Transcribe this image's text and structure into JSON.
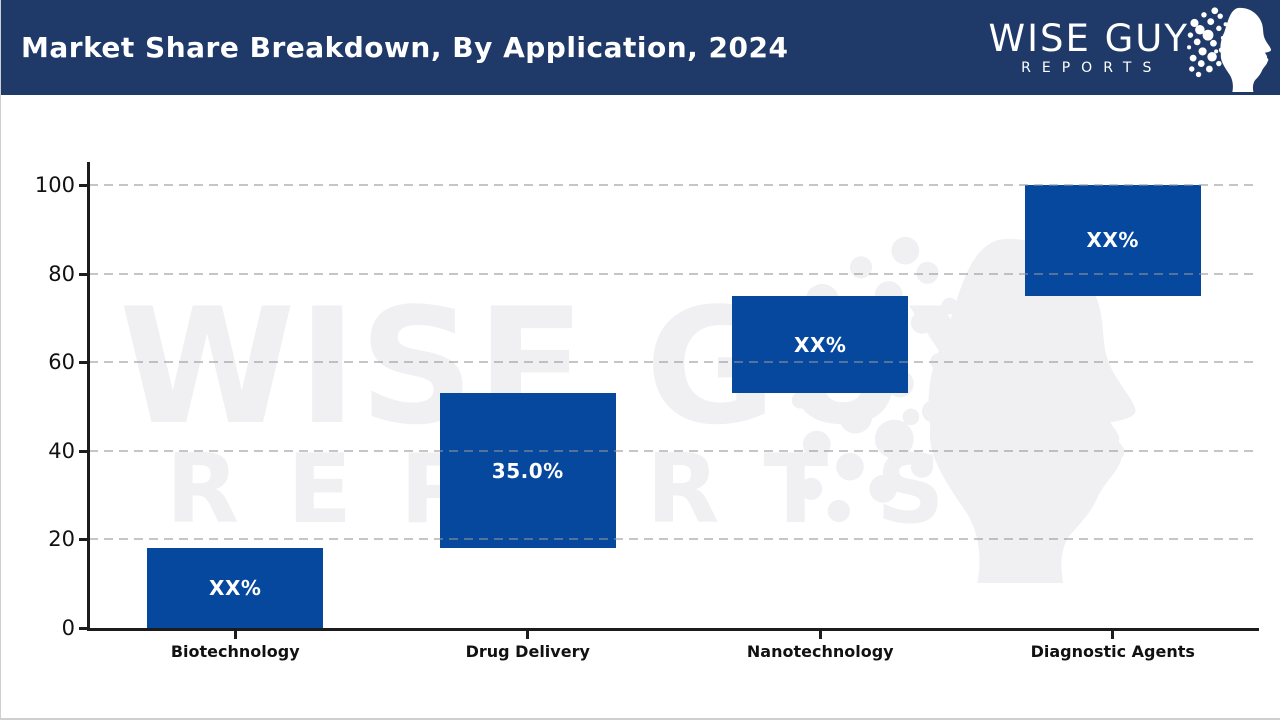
{
  "header": {
    "title": "Market Share Breakdown, By Application, 2024",
    "logo": {
      "line1": "WISE GUY",
      "line2": "REPORTS"
    }
  },
  "watermark": {
    "line1": "WISE GUY",
    "line2": "REPORTS"
  },
  "chart_data": {
    "type": "bar",
    "subtype": "waterfall",
    "title": "Market Share Breakdown, By Application, 2024",
    "categories": [
      "Biotechnology",
      "Drug Delivery",
      "Nanotechnology",
      "Diagnostic Agents"
    ],
    "bars": [
      {
        "category": "Biotechnology",
        "start": 0,
        "end": 18,
        "value": 18,
        "label": "XX%"
      },
      {
        "category": "Drug Delivery",
        "start": 18,
        "end": 53,
        "value": 35,
        "label": "35.0%"
      },
      {
        "category": "Nanotechnology",
        "start": 53,
        "end": 75,
        "value": 22,
        "label": "XX%"
      },
      {
        "category": "Diagnostic Agents",
        "start": 75,
        "end": 100,
        "value": 25,
        "label": "XX%"
      }
    ],
    "yticks": [
      0,
      20,
      40,
      60,
      80,
      100
    ],
    "ylim": [
      0,
      105
    ],
    "xlabel": "",
    "ylabel": "",
    "legend": null,
    "grid": "horizontal-dashed",
    "bar_color": "#05489e",
    "bar_label_color": "#ffffff"
  },
  "colors": {
    "header_bg": "#1f3a68",
    "bar": "#05489e",
    "axis": "#1c1c1c",
    "grid": "#d8d8d8",
    "watermark": "#f0f0f3"
  }
}
